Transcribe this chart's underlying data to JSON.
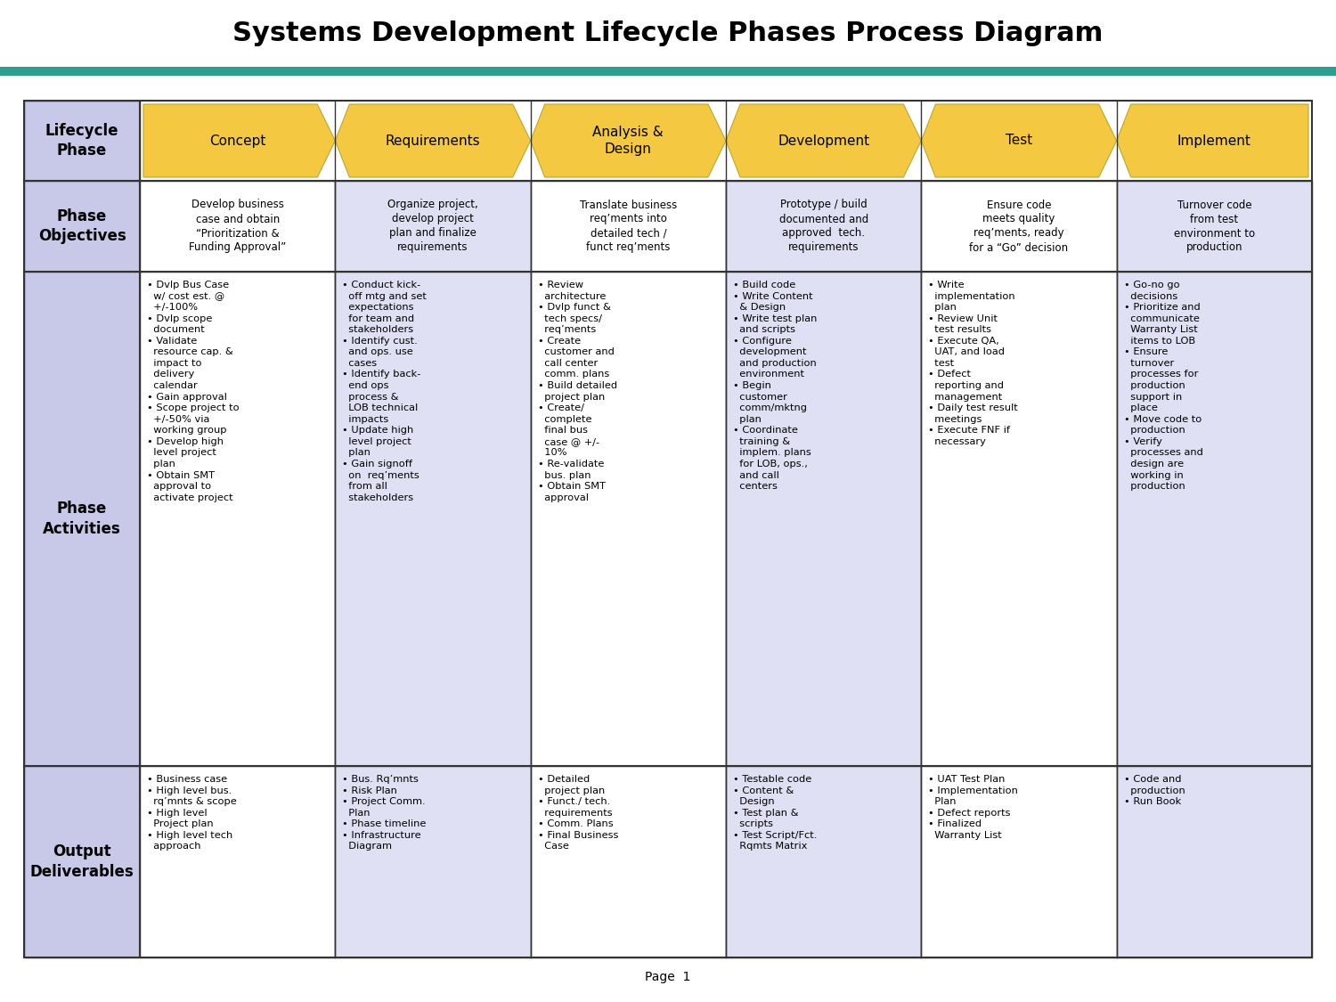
{
  "title": "Systems Development Lifecycle Phases Process Diagram",
  "title_fontsize": 20,
  "bg_color": "#ffffff",
  "teal_bar_color": "#2e9e8e",
  "label_bg": "#c8c8e8",
  "arrow_bg": "#f5c842",
  "cell_bg_even": "#ffffff",
  "cell_bg_odd": "#e0e0f4",
  "border_color": "#333333",
  "phases": [
    "Concept",
    "Requirements",
    "Analysis &\nDesign",
    "Development",
    "Test",
    "Implement"
  ],
  "row_labels": [
    "Lifecycle\nPhase",
    "Phase\nObjectives",
    "Phase\nActivities",
    "Output\nDeliverables"
  ],
  "phase_objectives": [
    "Develop business\ncase and obtain\n“Prioritization &\nFunding Approval”",
    "Organize project,\ndevelop project\nplan and finalize\nrequirements",
    "Translate business\nreq’ments into\ndetailed tech /\nfunct req’ments",
    "Prototype / build\ndocumented and\napproved  tech.\nrequirements",
    "Ensure code\nmeets quality\nreq’ments, ready\nfor a “Go” decision",
    "Turnover code\nfrom test\nenvironment to\nproduction"
  ],
  "phase_activities": [
    "• Dvlp Bus Case\n  w/ cost est. @\n  +/-100%\n• Dvlp scope\n  document\n• Validate\n  resource cap. &\n  impact to\n  delivery\n  calendar\n• Gain approval\n• Scope project to\n  +/-50% via\n  working group\n• Develop high\n  level project\n  plan\n• Obtain SMT\n  approval to\n  activate project",
    "• Conduct kick-\n  off mtg and set\n  expectations\n  for team and\n  stakeholders\n• Identify cust.\n  and ops. use\n  cases\n• Identify back-\n  end ops\n  process &\n  LOB technical\n  impacts\n• Update high\n  level project\n  plan\n• Gain signoff\n  on  req’ments\n  from all\n  stakeholders",
    "• Review\n  architecture\n• Dvlp funct &\n  tech specs/\n  req’ments\n• Create\n  customer and\n  call center\n  comm. plans\n• Build detailed\n  project plan\n• Create/\n  complete\n  final bus\n  case @ +/-\n  10%\n• Re-validate\n  bus. plan\n• Obtain SMT\n  approval",
    "• Build code\n• Write Content\n  & Design\n• Write test plan\n  and scripts\n• Configure\n  development\n  and production\n  environment\n• Begin\n  customer\n  comm/mktng\n  plan\n• Coordinate\n  training &\n  implem. plans\n  for LOB, ops.,\n  and call\n  centers",
    "• Write\n  implementation\n  plan\n• Review Unit\n  test results\n• Execute QA,\n  UAT, and load\n  test\n• Defect\n  reporting and\n  management\n• Daily test result\n  meetings\n• Execute FNF if\n  necessary",
    "• Go-no go\n  decisions\n• Prioritize and\n  communicate\n  Warranty List\n  items to LOB\n• Ensure\n  turnover\n  processes for\n  production\n  support in\n  place\n• Move code to\n  production\n• Verify\n  processes and\n  design are\n  working in\n  production"
  ],
  "output_deliverables": [
    "• Business case\n• High level bus.\n  rq’mnts & scope\n• High level\n  Project plan\n• High level tech\n  approach",
    "• Bus. Rq’mnts\n• Risk Plan\n• Project Comm.\n  Plan\n• Phase timeline\n• Infrastructure\n  Diagram",
    "• Detailed\n  project plan\n• Funct./ tech.\n  requirements\n• Comm. Plans\n• Final Business\n  Case",
    "• Testable code\n• Content &\n  Design\n• Test plan &\n  scripts\n• Test Script/Fct.\n  Rqmts Matrix",
    "• UAT Test Plan\n• Implementation\n  Plan\n• Defect reports\n• Finalized\n  Warranty List",
    "• Code and\n  production\n• Run Book"
  ],
  "footer": "Page  1"
}
